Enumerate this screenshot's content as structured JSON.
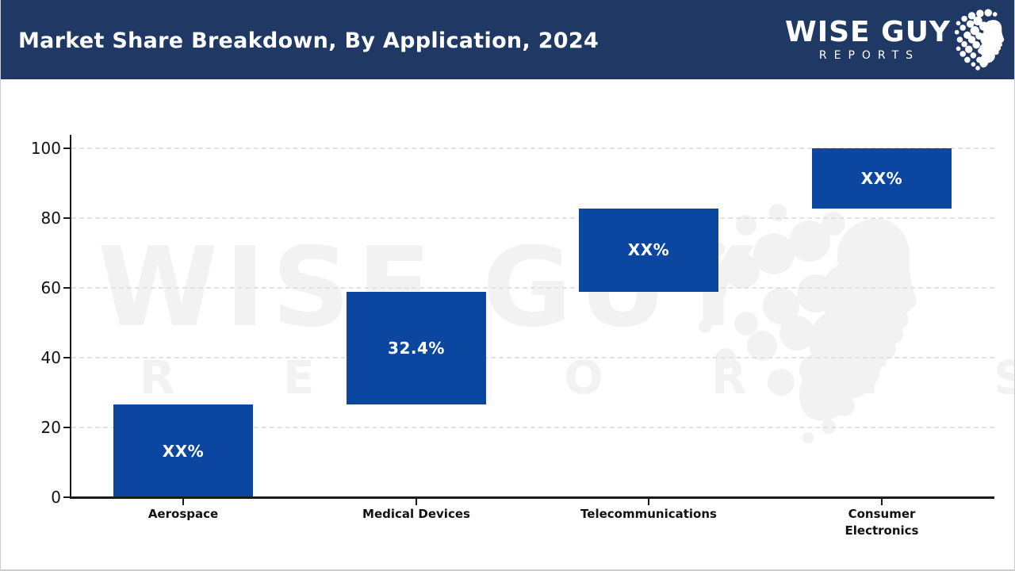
{
  "header": {
    "title": "Market Share Breakdown, By Application, 2024",
    "logo": {
      "line1": "WISE GUY",
      "line2": "REPORTS"
    }
  },
  "watermark": {
    "line1": "WISE GUY",
    "line2": "REPORTS"
  },
  "colors": {
    "header_bg": "#1f3864",
    "bar": "#0b47a1",
    "grid": "#e2e2e2",
    "axis": "#1a1a1a",
    "watermark": "#f2f2f2",
    "bar_label": "#ffffff"
  },
  "chart_data": {
    "type": "bar",
    "subtype": "waterfall",
    "title": "Market Share Breakdown, By Application, 2024",
    "categories": [
      "Aerospace",
      "Medical Devices",
      "Telecommunications",
      "Consumer Electronics"
    ],
    "bars": [
      {
        "category": "Aerospace",
        "start": 0,
        "end": 26.5,
        "label": "XX%"
      },
      {
        "category": "Medical Devices",
        "start": 26.5,
        "end": 58.9,
        "label": "32.4%"
      },
      {
        "category": "Telecommunications",
        "start": 58.9,
        "end": 82.7,
        "label": "XX%"
      },
      {
        "category": "Consumer Electronics",
        "start": 82.7,
        "end": 100,
        "label": "XX%"
      }
    ],
    "xlabel": "",
    "ylabel": "",
    "yticks": [
      0,
      20,
      40,
      60,
      80,
      100
    ],
    "ylim": [
      0,
      104
    ],
    "grid": "horizontal-dashed",
    "legend": false
  }
}
